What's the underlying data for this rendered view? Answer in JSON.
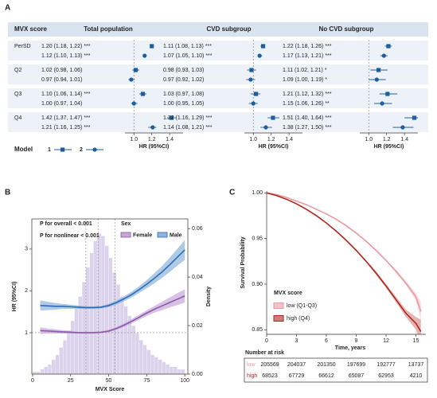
{
  "panel_labels": [
    "A",
    "B",
    "C"
  ],
  "chart_data": [
    {
      "type": "forest",
      "row_header": "MVX score",
      "categories": [
        "PerSD",
        "Q2",
        "Q3",
        "Q4"
      ],
      "legend_title": "Model",
      "panels": [
        {
          "title": "Total population",
          "xlim": [
            0.9,
            1.55
          ],
          "xticks": [
            {
              "value": 1,
              "label": "1.0"
            },
            1.2,
            1.4
          ],
          "reference": 1,
          "xlabel": "HR (95%CI)",
          "series": [
            {
              "name": "1",
              "color": "#1f5e9e",
              "marker": "square",
              "values": [
                1.2,
                1.02,
                1.1,
                1.42
              ],
              "lower": [
                1.18,
                0.98,
                1.06,
                1.37
              ],
              "upper": [
                1.22,
                1.06,
                1.14,
                1.47
              ],
              "value_labels": [
                "1.20 (1.18, 1.22) ***",
                "1.02 (0.98, 1.06)",
                "1.10 (1.06, 1.14) ***",
                "1.42 (1.37, 1.47) ***"
              ]
            },
            {
              "name": "2",
              "color": "#1f5e9e",
              "marker": "circle",
              "values": [
                1.12,
                0.97,
                1.0,
                1.21
              ],
              "lower": [
                1.1,
                0.94,
                0.97,
                1.16
              ],
              "upper": [
                1.13,
                1.01,
                1.04,
                1.25
              ],
              "value_labels": [
                "1.12 (1.10, 1.13) ***",
                "0.97 (0.94, 1.01)",
                "1.00 (0.97, 1.04)",
                "1.21 (1.16, 1.25) ***"
              ]
            }
          ]
        },
        {
          "title": "CVD subgroup",
          "xlim": [
            0.9,
            1.55
          ],
          "xticks": [
            {
              "value": 1,
              "label": "1.0"
            },
            1.2,
            1.4
          ],
          "reference": 1,
          "xlabel": "HR (95%CI)",
          "series": [
            {
              "name": "1",
              "color": "#1f5e9e",
              "marker": "square",
              "values": [
                1.11,
                0.98,
                1.03,
                1.22
              ],
              "lower": [
                1.08,
                0.93,
                0.97,
                1.16
              ],
              "upper": [
                1.13,
                1.03,
                1.08,
                1.29
              ],
              "value_labels": [
                "1.11 (1.08, 1.13) ***",
                "0.98 (0.93, 1.03)",
                "1.03 (0.97, 1.08)",
                "1.22 (1.16, 1.29) ***"
              ]
            },
            {
              "name": "2",
              "color": "#1f5e9e",
              "marker": "circle",
              "values": [
                1.07,
                0.97,
                1.0,
                1.14
              ],
              "lower": [
                1.05,
                0.92,
                0.95,
                1.08
              ],
              "upper": [
                1.1,
                1.02,
                1.05,
                1.21
              ],
              "value_labels": [
                "1.07 (1.05, 1.10) ***",
                "0.97 (0.92, 1.02)",
                "1.00 (0.95, 1.05)",
                "1.14 (1.08, 1.21) ***"
              ]
            }
          ]
        },
        {
          "title": "No CVD subgroup",
          "xlim": [
            0.9,
            1.55
          ],
          "xticks": [
            {
              "value": 1,
              "label": "1.0"
            },
            1.2,
            1.4
          ],
          "reference": 1,
          "xlabel": "HR (95%CI)",
          "series": [
            {
              "name": "1",
              "color": "#1f5e9e",
              "marker": "square",
              "values": [
                1.22,
                1.11,
                1.21,
                1.51
              ],
              "lower": [
                1.18,
                1.02,
                1.12,
                1.4
              ],
              "upper": [
                1.26,
                1.21,
                1.32,
                1.64
              ],
              "value_labels": [
                "1.22 (1.18, 1.26) ***",
                "1.11 (1.02, 1.21) *",
                "1.21 (1.12, 1.32) ***",
                "1.51 (1.40, 1.64) ***"
              ]
            },
            {
              "name": "2",
              "color": "#1f5e9e",
              "marker": "circle",
              "values": [
                1.17,
                1.09,
                1.15,
                1.38
              ],
              "lower": [
                1.13,
                1.0,
                1.06,
                1.27
              ],
              "upper": [
                1.21,
                1.19,
                1.26,
                1.5
              ],
              "value_labels": [
                "1.17 (1.13, 1.21) ***",
                "1.09 (1.00, 1.19) *",
                "1.15 (1.06, 1.26) **",
                "1.38 (1.27, 1.50) ***"
              ]
            }
          ]
        }
      ]
    },
    {
      "type": "rcs",
      "xlabel": "MVX Score",
      "ylabel": "HR (95%CI)",
      "y2label": "Density",
      "annotations": [
        "P for overall < 0.001",
        "P for nonlinear < 0.001"
      ],
      "legend_title": "Sex",
      "xlim": [
        -0.5,
        102
      ],
      "xticks": [
        0,
        25,
        50,
        75,
        100
      ],
      "ylim": [
        0.01,
        3.72
      ],
      "yticks": [
        1,
        2,
        3
      ],
      "y2lim": [
        0,
        0.064
      ],
      "y2ticks": [
        {
          "value": 0,
          "label": "0.00"
        },
        {
          "value": 0.02,
          "label": "0.02"
        },
        {
          "value": 0.04,
          "label": "0.04"
        },
        {
          "value": 0.06,
          "label": "0.06"
        }
      ],
      "hline": 1,
      "vlines": [
        35,
        43,
        54
      ],
      "histogram": {
        "axis": "y2",
        "color": "#cfc3e6",
        "bins": [
          0,
          2.5,
          5,
          7.5,
          10,
          12.5,
          15,
          17.5,
          20,
          22.5,
          25,
          27.5,
          30,
          32.5,
          35,
          37.5,
          40,
          42.5,
          45,
          47.5,
          50,
          52.5,
          55,
          57.5,
          60,
          62.5,
          65,
          67.5,
          70,
          72.5,
          75,
          77.5,
          80,
          82.5,
          85,
          87.5,
          90,
          92.5,
          95,
          97.5,
          100
        ],
        "values": [
          0.001,
          0.001,
          0.002,
          0.003,
          0.004,
          0.006,
          0.008,
          0.011,
          0.014,
          0.018,
          0.022,
          0.027,
          0.032,
          0.038,
          0.044,
          0.05,
          0.055,
          0.058,
          0.057,
          0.053,
          0.048,
          0.042,
          0.037,
          0.032,
          0.028,
          0.024,
          0.02,
          0.017,
          0.014,
          0.012,
          0.01,
          0.008,
          0.007,
          0.006,
          0.005,
          0.004,
          0.003,
          0.003,
          0.002,
          0.002
        ]
      },
      "x": [
        5,
        10,
        15,
        20,
        25,
        30,
        35,
        40,
        45,
        50,
        55,
        60,
        65,
        70,
        75,
        80,
        85,
        90,
        95,
        100
      ],
      "series": [
        {
          "name": "Female",
          "color": "#8a5aa8",
          "band_color": "#c6a6d8",
          "values": [
            1.05,
            1.04,
            1.03,
            1.02,
            1.01,
            1.0,
            1.0,
            1.0,
            1.01,
            1.04,
            1.1,
            1.18,
            1.27,
            1.37,
            1.47,
            1.56,
            1.64,
            1.72,
            1.8,
            1.88
          ],
          "lower": [
            0.97,
            0.98,
            0.98,
            0.98,
            0.98,
            0.98,
            0.98,
            0.98,
            0.99,
            1.01,
            1.07,
            1.14,
            1.22,
            1.31,
            1.4,
            1.48,
            1.54,
            1.6,
            1.66,
            1.72
          ],
          "upper": [
            1.13,
            1.1,
            1.08,
            1.06,
            1.04,
            1.02,
            1.02,
            1.02,
            1.03,
            1.07,
            1.13,
            1.22,
            1.32,
            1.43,
            1.54,
            1.64,
            1.74,
            1.84,
            1.94,
            2.04
          ]
        },
        {
          "name": "Male",
          "color": "#2a6fb5",
          "band_color": "#8fb3dc",
          "values": [
            1.65,
            1.64,
            1.63,
            1.63,
            1.62,
            1.61,
            1.6,
            1.6,
            1.61,
            1.65,
            1.72,
            1.81,
            1.91,
            2.03,
            2.16,
            2.3,
            2.45,
            2.62,
            2.8,
            2.98
          ],
          "lower": [
            1.53,
            1.54,
            1.55,
            1.57,
            1.57,
            1.57,
            1.57,
            1.57,
            1.58,
            1.61,
            1.67,
            1.75,
            1.84,
            1.95,
            2.06,
            2.18,
            2.31,
            2.45,
            2.6,
            2.74
          ],
          "upper": [
            1.77,
            1.74,
            1.71,
            1.69,
            1.67,
            1.65,
            1.63,
            1.63,
            1.64,
            1.69,
            1.77,
            1.87,
            1.98,
            2.11,
            2.26,
            2.42,
            2.59,
            2.79,
            3.0,
            3.22
          ]
        }
      ]
    },
    {
      "type": "km",
      "xlabel": "Time, years",
      "ylabel": "Survival Probability",
      "legend_title": "MVX score",
      "xlim": [
        0,
        16
      ],
      "xticks": [
        0,
        3,
        6,
        9,
        12,
        15
      ],
      "ylim": [
        0.845,
        1.002
      ],
      "yticks": [
        {
          "value": 1,
          "label": "1.00"
        },
        0.95,
        {
          "value": 0.9,
          "label": "0.90"
        },
        0.85
      ],
      "x": [
        0,
        1,
        2,
        3,
        4,
        5,
        6,
        7,
        8,
        9,
        10,
        11,
        12,
        13,
        14,
        15,
        15.5
      ],
      "series": [
        {
          "name": "low (Q1-Q3)",
          "color": "#e89aa3",
          "values": [
            1.0,
            0.998,
            0.995,
            0.991,
            0.987,
            0.982,
            0.977,
            0.971,
            0.964,
            0.956,
            0.947,
            0.937,
            0.926,
            0.914,
            0.901,
            0.886,
            0.87
          ],
          "lower": [
            1.0,
            0.998,
            0.995,
            0.991,
            0.987,
            0.982,
            0.977,
            0.971,
            0.963,
            0.955,
            0.946,
            0.936,
            0.925,
            0.912,
            0.899,
            0.882,
            0.86
          ],
          "upper": [
            1.0,
            0.998,
            0.995,
            0.991,
            0.987,
            0.982,
            0.977,
            0.971,
            0.965,
            0.957,
            0.948,
            0.938,
            0.927,
            0.916,
            0.903,
            0.89,
            0.88
          ]
        },
        {
          "name": "high (Q4)",
          "color": "#b0271f",
          "values": [
            1.0,
            0.997,
            0.993,
            0.988,
            0.982,
            0.975,
            0.967,
            0.958,
            0.948,
            0.937,
            0.925,
            0.912,
            0.898,
            0.883,
            0.868,
            0.857,
            0.848
          ],
          "lower": [
            1.0,
            0.997,
            0.993,
            0.988,
            0.982,
            0.975,
            0.967,
            0.957,
            0.947,
            0.936,
            0.924,
            0.91,
            0.896,
            0.88,
            0.864,
            0.85,
            0.835
          ],
          "upper": [
            1.0,
            0.997,
            0.993,
            0.988,
            0.982,
            0.975,
            0.967,
            0.959,
            0.949,
            0.938,
            0.926,
            0.914,
            0.9,
            0.886,
            0.872,
            0.864,
            0.861
          ]
        }
      ],
      "risk_table": {
        "title": "Number at risk",
        "rows": [
          {
            "label": "low",
            "color": "#e89aa3",
            "values": [
              205569,
              204037,
              201350,
              197699,
              192777,
              13737
            ]
          },
          {
            "label": "high",
            "color": "#b0271f",
            "values": [
              68523,
              67729,
              66612,
              65087,
              62953,
              4210
            ]
          }
        ]
      }
    }
  ]
}
